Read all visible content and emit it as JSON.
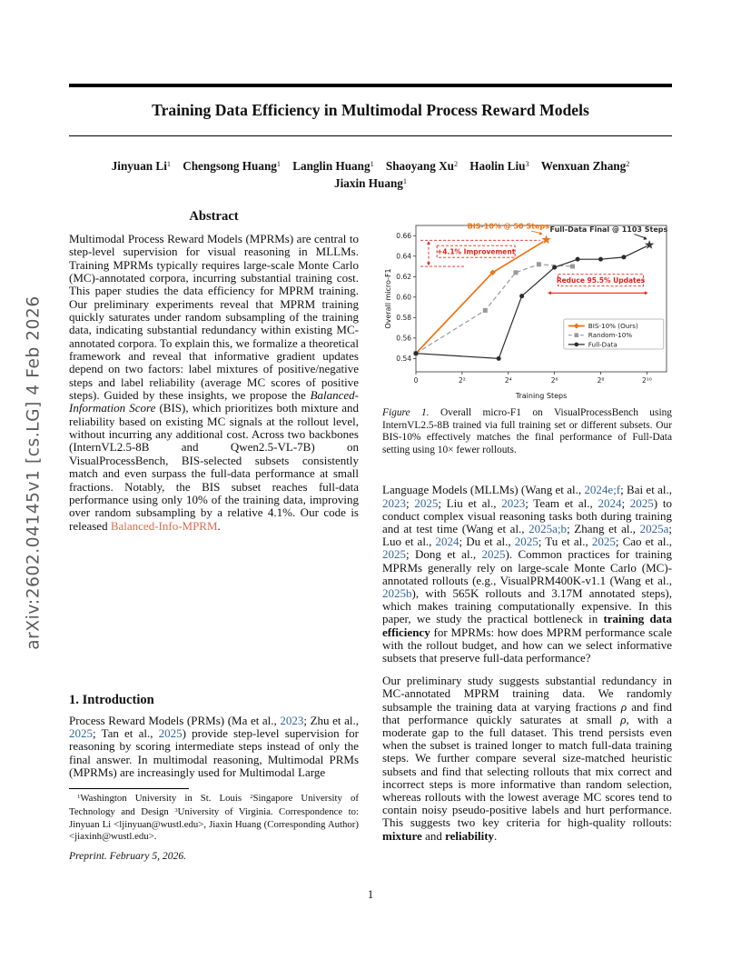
{
  "page": {
    "number": "1"
  },
  "arxiv_stamp": "arXiv:2602.04145v1  [cs.LG]  4 Feb 2026",
  "title": "Training Data Efficiency in Multimodal Process Reward Models",
  "authors": {
    "line1": [
      {
        "t": "Jinyuan Li",
        "s": "name"
      },
      {
        "t": "1",
        "s": "sup"
      },
      {
        "t": "    ",
        "s": "plain"
      },
      {
        "t": "Chengsong Huang",
        "s": "name"
      },
      {
        "t": "1",
        "s": "sup"
      },
      {
        "t": "    ",
        "s": "plain"
      },
      {
        "t": "Langlin Huang",
        "s": "name"
      },
      {
        "t": "1",
        "s": "sup"
      },
      {
        "t": "    ",
        "s": "plain"
      },
      {
        "t": "Shaoyang Xu",
        "s": "name"
      },
      {
        "t": "2",
        "s": "sup"
      },
      {
        "t": "    ",
        "s": "plain"
      },
      {
        "t": "Haolin Liu",
        "s": "name"
      },
      {
        "t": "3",
        "s": "sup"
      },
      {
        "t": "    ",
        "s": "plain"
      },
      {
        "t": "Wenxuan Zhang",
        "s": "name"
      },
      {
        "t": "2",
        "s": "sup"
      }
    ],
    "line2": [
      {
        "t": "Jiaxin Huang",
        "s": "name"
      },
      {
        "t": "1",
        "s": "sup"
      }
    ]
  },
  "abstract": {
    "heading": "Abstract",
    "body": [
      {
        "t": "Multimodal Process Reward Models (MPRMs) are central to step-level supervision for visual reasoning in MLLMs. Training MPRMs typically requires large-scale Monte Carlo (MC)-annotated corpora, incurring substantial training cost. This paper studies the data efficiency for MPRM training. Our preliminary experiments reveal that MPRM training quickly saturates under random subsampling of the training data, indicating substantial redundancy within existing MC-annotated corpora. To explain this, we formalize a theoretical framework and reveal that informative gradient updates depend on two factors: label mixtures of positive/negative steps and label reliability (average MC scores of positive steps). Guided by these insights, we propose the ",
        "s": "plain"
      },
      {
        "t": "Balanced-Information Score",
        "s": "italic"
      },
      {
        "t": " (BIS), which prioritizes both mixture and reliability based on existing MC signals at the rollout level, without incurring any additional cost. Across two backbones (InternVL2.5-8B and Qwen2.5-VL-7B) on VisualProcessBench, BIS-selected subsets consistently match and even surpass the full-data performance at small fractions. Notably, the BIS subset reaches full-data performance using only 10% of the training data, improving over random subsampling by a relative 4.1%. Our code is released ",
        "s": "plain"
      },
      {
        "t": "Balanced-Info-MPRM",
        "s": "link"
      },
      {
        "t": ".",
        "s": "plain"
      }
    ]
  },
  "intro": {
    "heading": "1. Introduction",
    "p1": [
      {
        "t": "Process Reward Models (PRMs) (Ma et al., ",
        "s": "plain"
      },
      {
        "t": "2023",
        "s": "cite"
      },
      {
        "t": "; Zhu et al., ",
        "s": "plain"
      },
      {
        "t": "2025",
        "s": "cite"
      },
      {
        "t": "; Tan et al., ",
        "s": "plain"
      },
      {
        "t": "2025",
        "s": "cite"
      },
      {
        "t": ") provide step-level supervision for reasoning by scoring intermediate steps instead of only the final answer. In multimodal reasoning, Multimodal PRMs (MPRMs) are increasingly used for Multimodal Large",
        "s": "plain"
      }
    ]
  },
  "footnote": {
    "body": [
      {
        "t": "1",
        "s": "sup"
      },
      {
        "t": "Washington University in St. Louis ",
        "s": "plain"
      },
      {
        "t": "2",
        "s": "sup"
      },
      {
        "t": "Singapore University of Technology and Design ",
        "s": "plain"
      },
      {
        "t": "3",
        "s": "sup"
      },
      {
        "t": "University of Virginia. Correspondence to: Jinyuan Li <ljinyuan@wustl.edu>, Jiaxin Huang (Corresponding Author) <jiaxinh@wustl.edu>.",
        "s": "plain"
      }
    ]
  },
  "preprint_line": "Preprint. February 5, 2026.",
  "figure": {
    "caption": [
      {
        "t": "Figure 1.",
        "s": "figlabel"
      },
      {
        "t": " Overall micro-F1 on VisualProcessBench using InternVL2.5-8B trained via full training set or different subsets. Our BIS-10% effectively matches the final performance of Full-Data setting using 10× fewer rollouts.",
        "s": "plain"
      }
    ]
  },
  "right_col": {
    "p1": [
      {
        "t": "Language Models (MLLMs) (Wang et al., ",
        "s": "plain"
      },
      {
        "t": "2024e;f",
        "s": "cite"
      },
      {
        "t": "; Bai et al., ",
        "s": "plain"
      },
      {
        "t": "2023",
        "s": "cite"
      },
      {
        "t": "; ",
        "s": "plain"
      },
      {
        "t": "2025",
        "s": "cite"
      },
      {
        "t": "; Liu et al., ",
        "s": "plain"
      },
      {
        "t": "2023",
        "s": "cite"
      },
      {
        "t": "; Team et al., ",
        "s": "plain"
      },
      {
        "t": "2024",
        "s": "cite"
      },
      {
        "t": "; ",
        "s": "plain"
      },
      {
        "t": "2025",
        "s": "cite"
      },
      {
        "t": ") to conduct complex visual reasoning tasks both during training and at test time (Wang et al., ",
        "s": "plain"
      },
      {
        "t": "2025a;b",
        "s": "cite"
      },
      {
        "t": "; Zhang et al., ",
        "s": "plain"
      },
      {
        "t": "2025a",
        "s": "cite"
      },
      {
        "t": "; Luo et al., ",
        "s": "plain"
      },
      {
        "t": "2024",
        "s": "cite"
      },
      {
        "t": "; Du et al., ",
        "s": "plain"
      },
      {
        "t": "2025",
        "s": "cite"
      },
      {
        "t": "; Tu et al., ",
        "s": "plain"
      },
      {
        "t": "2025",
        "s": "cite"
      },
      {
        "t": "; Cao et al., ",
        "s": "plain"
      },
      {
        "t": "2025",
        "s": "cite"
      },
      {
        "t": "; Dong et al., ",
        "s": "plain"
      },
      {
        "t": "2025",
        "s": "cite"
      },
      {
        "t": "). Common practices for training MPRMs generally rely on large-scale Monte Carlo (MC)-annotated rollouts (e.g., VisualPRM400K-v1.1 (Wang et al., ",
        "s": "plain"
      },
      {
        "t": "2025b",
        "s": "cite"
      },
      {
        "t": "), with 565K rollouts and 3.17M annotated steps), which makes training computationally expensive. In this paper, we study the practical bottleneck in ",
        "s": "plain"
      },
      {
        "t": "training data efficiency",
        "s": "bold"
      },
      {
        "t": " for MPRMs: how does MPRM performance scale with the rollout budget, and how can we select informative subsets that preserve full-data performance?",
        "s": "plain"
      }
    ],
    "p2": [
      {
        "t": "Our preliminary study suggests substantial redundancy in MC-annotated MPRM training data. We randomly subsample the training data at varying fractions ",
        "s": "plain"
      },
      {
        "t": "ρ",
        "s": "italic"
      },
      {
        "t": " and find that performance quickly saturates at small ",
        "s": "plain"
      },
      {
        "t": "ρ",
        "s": "italic"
      },
      {
        "t": ", with a moderate gap to the full dataset. This trend persists even when the subset is trained longer to match full-data training steps. We further compare several size-matched heuristic subsets and find that selecting rollouts that mix correct and incorrect steps is more informative than random selection, whereas rollouts with the lowest average MC scores tend to contain noisy pseudo-positive labels and hurt performance. This suggests two key criteria for high-quality rollouts: ",
        "s": "plain"
      },
      {
        "t": "mixture",
        "s": "bold"
      },
      {
        "t": " and ",
        "s": "plain"
      },
      {
        "t": "reliability",
        "s": "bold"
      },
      {
        "t": ".",
        "s": "plain"
      }
    ]
  },
  "chart_data": {
    "type": "line",
    "xlabel": "Training Steps",
    "ylabel": "Overall micro-F1",
    "xscale": "log2",
    "xlim_log2": [
      0,
      10.85
    ],
    "ylim": [
      0.527,
      0.67
    ],
    "yticks": [
      0.54,
      0.56,
      0.58,
      0.6,
      0.62,
      0.64,
      0.66
    ],
    "xticks": [
      {
        "v": 1,
        "label": "0"
      },
      {
        "v": 4,
        "label": "2²"
      },
      {
        "v": 16,
        "label": "2⁴"
      },
      {
        "v": 64,
        "label": "2⁶"
      },
      {
        "v": 256,
        "label": "2⁸"
      },
      {
        "v": 1024,
        "label": "2¹⁰"
      }
    ],
    "series": [
      {
        "name": "BIS-10% (Ours)",
        "color": "#ee7211",
        "marker": "diamond",
        "dash": "solid",
        "width": 1.7,
        "points": [
          [
            1,
            0.545
          ],
          [
            10,
            0.624
          ],
          [
            50,
            0.656
          ]
        ],
        "end_star": true,
        "star_color": "#ee7211"
      },
      {
        "name": "Random-10%",
        "color": "#999999",
        "marker": "square",
        "dash": "dashed",
        "width": 1.2,
        "points": [
          [
            1,
            0.545
          ],
          [
            8,
            0.587
          ],
          [
            20,
            0.624
          ],
          [
            40,
            0.632
          ],
          [
            110,
            0.63
          ]
        ],
        "end_star": false
      },
      {
        "name": "Full-Data",
        "color": "#2b2b2b",
        "marker": "circle",
        "dash": "solid",
        "width": 1.2,
        "points": [
          [
            1,
            0.545
          ],
          [
            12,
            0.54
          ],
          [
            24,
            0.601
          ],
          [
            64,
            0.629
          ],
          [
            128,
            0.637
          ],
          [
            256,
            0.637
          ],
          [
            512,
            0.639
          ],
          [
            1103,
            0.651
          ]
        ],
        "end_star": true,
        "star_color": "#3a3a3a"
      }
    ],
    "annotations": {
      "accent_red": "#e1251b",
      "bis": {
        "text": "BIS-10% @ 50 Steps",
        "lx": 4.0,
        "y": 0.6668
      },
      "full": {
        "text": "Full-Data Final @ 1103 Steps",
        "lx": 8.35,
        "y": 0.664
      },
      "improve": {
        "text": "+4.1% Improvement",
        "lx": 2.6,
        "y": 0.6445,
        "y_top": 0.6555,
        "y_bottom": 0.63,
        "arrow_lx": 0.55
      },
      "reduce": {
        "text": "Reduce 95.5% Updates",
        "lx": 8.0,
        "y": 0.6165,
        "arrow_y": 0.604,
        "from": 50,
        "to": 1103
      }
    },
    "legend": {
      "x_log2": 6.4,
      "y_top": 0.5785,
      "width": 110,
      "height": 33
    }
  }
}
